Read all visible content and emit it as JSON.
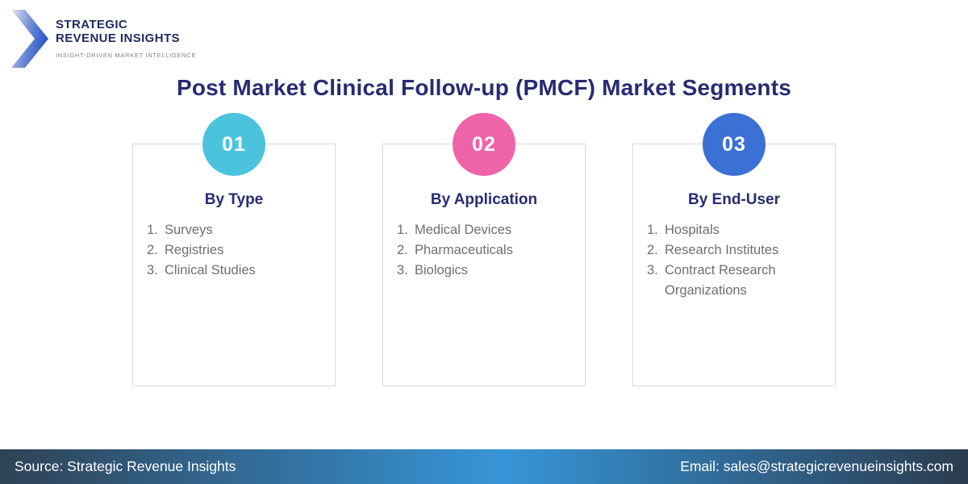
{
  "logo": {
    "name_line1": "STRATEGIC",
    "name_line2": "REVENUE INSIGHTS",
    "tagline": "INSIGHT-DRIVEN MARKET INTELLIGENCE"
  },
  "title": "Post Market Clinical Follow-up (PMCF) Market Segments",
  "segments": [
    {
      "number": "01",
      "badge_color": "#4cc3dd",
      "heading": "By Type",
      "items": [
        {
          "num": "1.",
          "label": "Surveys"
        },
        {
          "num": "2.",
          "label": "Registries"
        },
        {
          "num": "3.",
          "label": "Clinical Studies"
        }
      ]
    },
    {
      "number": "02",
      "badge_color": "#ef63a9",
      "heading": "By Application",
      "items": [
        {
          "num": "1.",
          "label": "Medical Devices"
        },
        {
          "num": "2.",
          "label": "Pharmaceuticals"
        },
        {
          "num": "3.",
          "label": "Biologics"
        }
      ]
    },
    {
      "number": "03",
      "badge_color": "#3b70d5",
      "heading": "By End-User",
      "items": [
        {
          "num": "1.",
          "label": "Hospitals"
        },
        {
          "num": "2.",
          "label": "Research Institutes"
        },
        {
          "num": "3.",
          "label": "Contract Research Organizations"
        }
      ]
    }
  ],
  "footer": {
    "source": "Source: Strategic Revenue Insights",
    "email": "Email: sales@strategicrevenueinsights.com"
  },
  "colors": {
    "title_navy": "#282b72",
    "list_gray": "#6d6e70",
    "card_border": "#d9d9d9",
    "footer_dark": "#2f4256",
    "footer_blue": "#3795d8"
  }
}
